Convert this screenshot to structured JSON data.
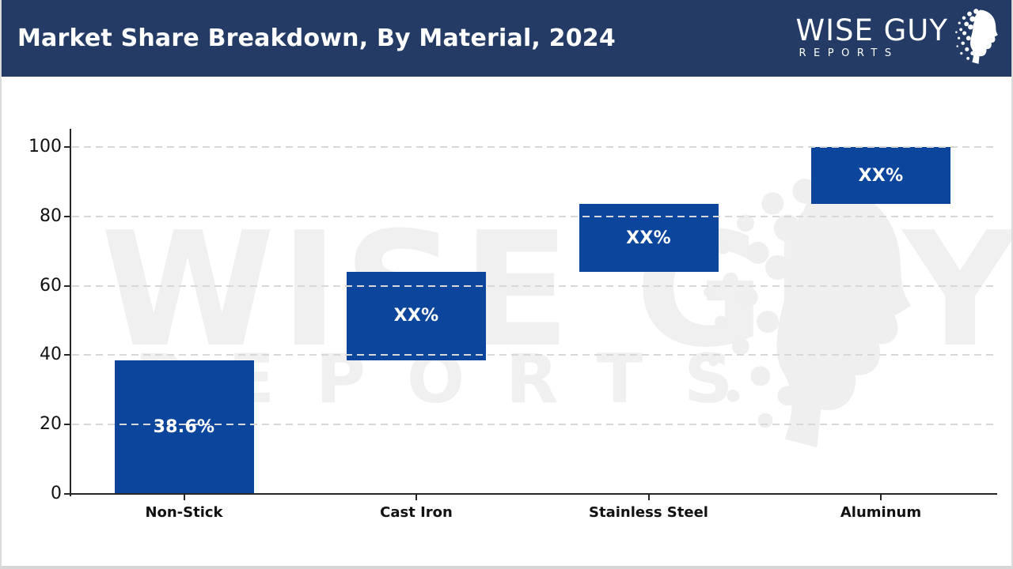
{
  "header": {
    "title": "Market Share Breakdown, By Material, 2024",
    "logo": {
      "line1": "WISE GUY",
      "line2": "REPORTS"
    }
  },
  "watermark": {
    "line1": "WISE GUY",
    "line2": "REPORTS"
  },
  "colors": {
    "header_bg": "#243b66",
    "bar_blue": "#0b459c",
    "gridline": "#d8d8d8",
    "axis": "#262626",
    "bar_label_text": "#ffffff",
    "tick_label_text": "#111111",
    "watermark_text": "#f0f0f0",
    "page_border": "#dadada"
  },
  "chart_data": {
    "type": "bar",
    "subtype": "waterfall",
    "title": "Market Share Breakdown, By Material, 2024",
    "categories": [
      "Non-Stick",
      "Cast Iron",
      "Stainless Steel",
      "Aluminum"
    ],
    "segments": [
      {
        "category": "Non-Stick",
        "start": 0,
        "end": 38.6,
        "label": "38.6%"
      },
      {
        "category": "Cast Iron",
        "start": 38.6,
        "end": 64.1,
        "label": "XX%"
      },
      {
        "category": "Stainless Steel",
        "start": 64.1,
        "end": 83.5,
        "label": "XX%"
      },
      {
        "category": "Aluminum",
        "start": 83.5,
        "end": 100,
        "label": "XX%"
      }
    ],
    "y_ticks": [
      0,
      20,
      40,
      60,
      80,
      100
    ],
    "ylim": [
      0,
      100
    ],
    "xlabel": "",
    "ylabel": "",
    "grid": "horizontal-dashed",
    "legend": "none"
  }
}
